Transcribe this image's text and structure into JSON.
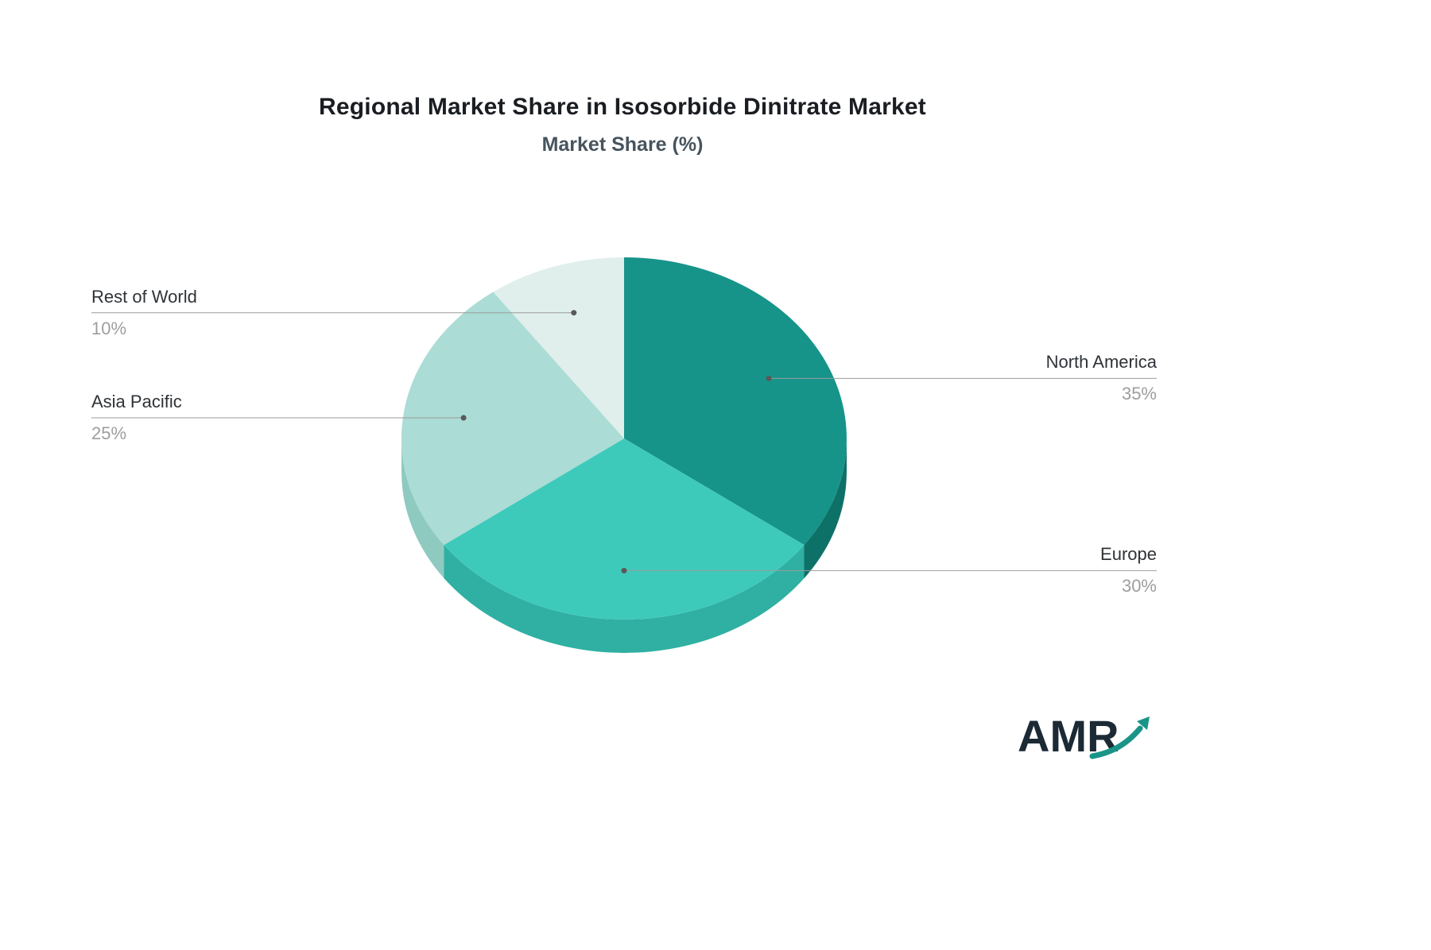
{
  "header": {
    "title": "Regional Market Share in Isosorbide Dinitrate Market",
    "subtitle": "Market Share (%)"
  },
  "logo": {
    "text": "AMR",
    "text_color": "#1c2a35",
    "arrow_color": "#1a9488"
  },
  "chart_data": {
    "type": "pie",
    "title": "Regional Market Share in Isosorbide Dinitrate Market",
    "subtitle": "Market Share (%)",
    "unit": "%",
    "style": "3d-pie",
    "direction": "clockwise",
    "start_angle_deg": 0,
    "legend": "none",
    "slices": [
      {
        "label": "North America",
        "value": 35,
        "value_text": "35%",
        "color": "#17948a",
        "side_color": "#0e7168",
        "label_side": "right"
      },
      {
        "label": "Europe",
        "value": 30,
        "value_text": "30%",
        "color": "#3ecabb",
        "side_color": "#2fb0a2",
        "label_side": "right"
      },
      {
        "label": "Asia Pacific",
        "value": 25,
        "value_text": "25%",
        "color": "#abdcd5",
        "side_color": "#8fcac1",
        "label_side": "left"
      },
      {
        "label": "Rest of World",
        "value": 10,
        "value_text": "10%",
        "color": "#e0efec",
        "side_color": "#c8e2dd",
        "label_side": "left"
      }
    ],
    "leader_line_color": "#9b9b9b",
    "leader_dot_color": "#595959"
  }
}
